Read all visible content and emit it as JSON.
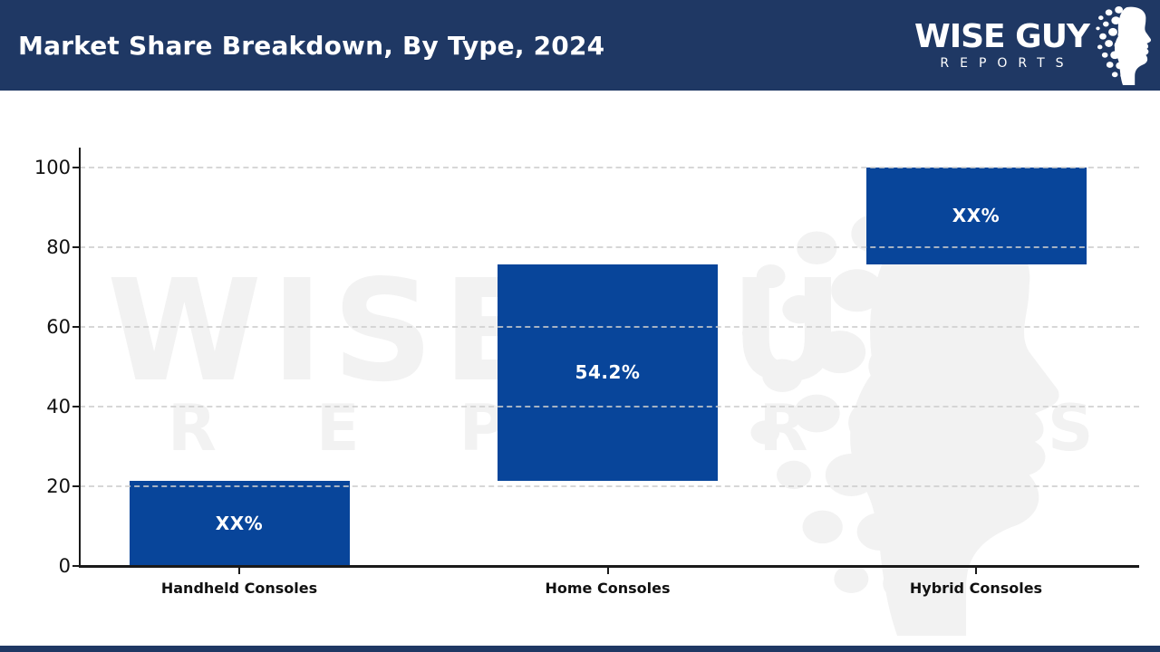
{
  "header": {
    "title": "Market Share Breakdown, By Type, 2024",
    "logo_line1": "WISE GUY",
    "logo_line2": "REPORTS"
  },
  "watermark": {
    "line1": "WISE GUY",
    "line2": "REPORTS"
  },
  "colors": {
    "header_bg": "#1f3864",
    "bar_fill": "#08459a",
    "grid_dash": "#cdcdcd",
    "axis": "#1a1a1a",
    "bar_label_text": "#ffffff",
    "watermark_gray": "#f2f2f2"
  },
  "chart_data": {
    "type": "bar",
    "subtype": "waterfall",
    "title": "Market Share Breakdown, By Type, 2024",
    "categories": [
      "Handheld Consoles",
      "Home Consoles",
      "Hybrid Consoles"
    ],
    "segments": [
      {
        "category": "Handheld Consoles",
        "start": 0,
        "end": 21.4,
        "label": "XX%"
      },
      {
        "category": "Home Consoles",
        "start": 21.4,
        "end": 75.6,
        "label": "54.2%"
      },
      {
        "category": "Hybrid Consoles",
        "start": 75.6,
        "end": 100,
        "label": "XX%"
      }
    ],
    "yticks": [
      0,
      20,
      40,
      60,
      80,
      100
    ],
    "ylim": [
      0,
      105
    ],
    "xlabel": "",
    "ylabel": "",
    "grid": "horizontal-dashed",
    "legend": "none"
  }
}
